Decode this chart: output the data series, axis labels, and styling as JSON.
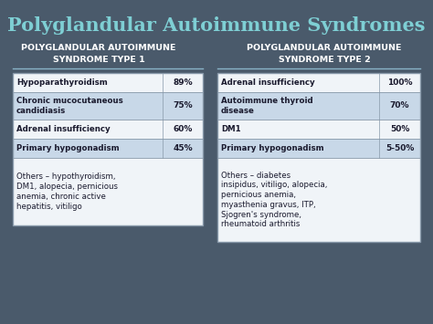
{
  "title": "Polyglandular Autoimmune Syndromes",
  "title_color": "#7ecfd4",
  "title_fontsize": 15,
  "bg_color": "#4a5a6b",
  "table_bg_white": "#f0f4f8",
  "table_bg_light": "#c8d8e8",
  "header_text_color": "#ffffff",
  "cell_text_bold_color": "#1a1a2e",
  "cell_text_normal_color": "#1a1a2e",
  "col1_header": "POLYGLANDULAR AUTOIMMUNE\nSYNDROME TYPE 1",
  "col2_header": "POLYGLANDULAR AUTOIMMUNE\nSYNDROME TYPE 2",
  "divider_color": "#8ab4c8",
  "border_color": "#8899aa",
  "table1_rows": [
    {
      "label": "Hypoparathyroidism",
      "pct": "89%",
      "bold": true
    },
    {
      "label": "Chronic mucocutaneous\ncandidiasis",
      "pct": "75%",
      "bold": true
    },
    {
      "label": "Adrenal insufficiency",
      "pct": "60%",
      "bold": true
    },
    {
      "label": "Primary hypogonadism",
      "pct": "45%",
      "bold": true
    },
    {
      "label": "Others – hypothyroidism,\nDM1, alopecia, pernicious\nanemia, chronic active\nhepatitis, vitiligo",
      "pct": "",
      "bold": false
    }
  ],
  "table2_rows": [
    {
      "label": "Adrenal insufficiency",
      "pct": "100%",
      "bold": true
    },
    {
      "label": "Autoimmune thyroid\ndisease",
      "pct": "70%",
      "bold": true
    },
    {
      "label": "DM1",
      "pct": "50%",
      "bold": true
    },
    {
      "label": "Primary hypogonadism",
      "pct": "5-50%",
      "bold": true
    },
    {
      "label": "Others – diabetes\ninsipidus, vitiligo, alopecia,\npernicious anemia,\nmyasthenia gravus, ITP,\nSjogren's syndrome,\nrheumatoid arthritis",
      "pct": "",
      "bold": false
    }
  ],
  "row_colors": [
    "#f0f4f8",
    "#c8d8e8",
    "#f0f4f8",
    "#c8d8e8",
    "#f0f4f8"
  ]
}
